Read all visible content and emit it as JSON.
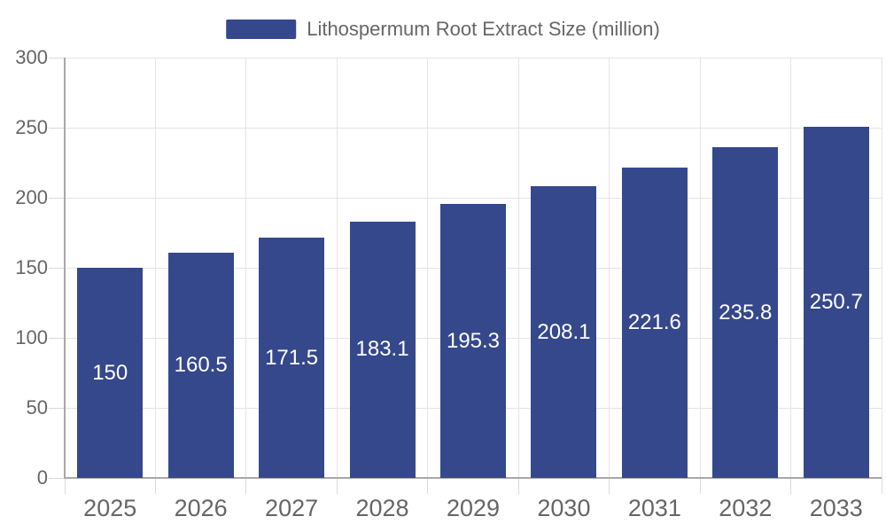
{
  "legend": {
    "label": "Lithospermum Root Extract Size (million)",
    "swatch_color": "#36488C"
  },
  "chart_data": {
    "type": "bar",
    "title": "Lithospermum Root Extract Size (million)",
    "categories": [
      "2025",
      "2026",
      "2027",
      "2028",
      "2029",
      "2030",
      "2031",
      "2032",
      "2033"
    ],
    "series": [
      {
        "name": "Lithospermum Root Extract Size (million)",
        "values": [
          150,
          160.5,
          171.5,
          183.1,
          195.3,
          208.1,
          221.6,
          235.8,
          250.7
        ]
      }
    ],
    "value_labels": [
      "150",
      "160.5",
      "171.5",
      "183.1",
      "195.3",
      "208.1",
      "221.6",
      "235.8",
      "250.7"
    ],
    "xlabel": "",
    "ylabel": "",
    "ylim": [
      0,
      300
    ],
    "yticks": [
      0,
      50,
      100,
      150,
      200,
      250,
      300
    ],
    "grid": "on",
    "legend_position": "top-center",
    "colors": {
      "bar": "#36488C",
      "value_label": "#FFFFFF",
      "axis_text": "#666666",
      "grid_line": "#E4E4E4",
      "axis_line": "#A8A8A8",
      "tick_line": "#D9D9D9",
      "background": "#FFFFFF"
    }
  }
}
